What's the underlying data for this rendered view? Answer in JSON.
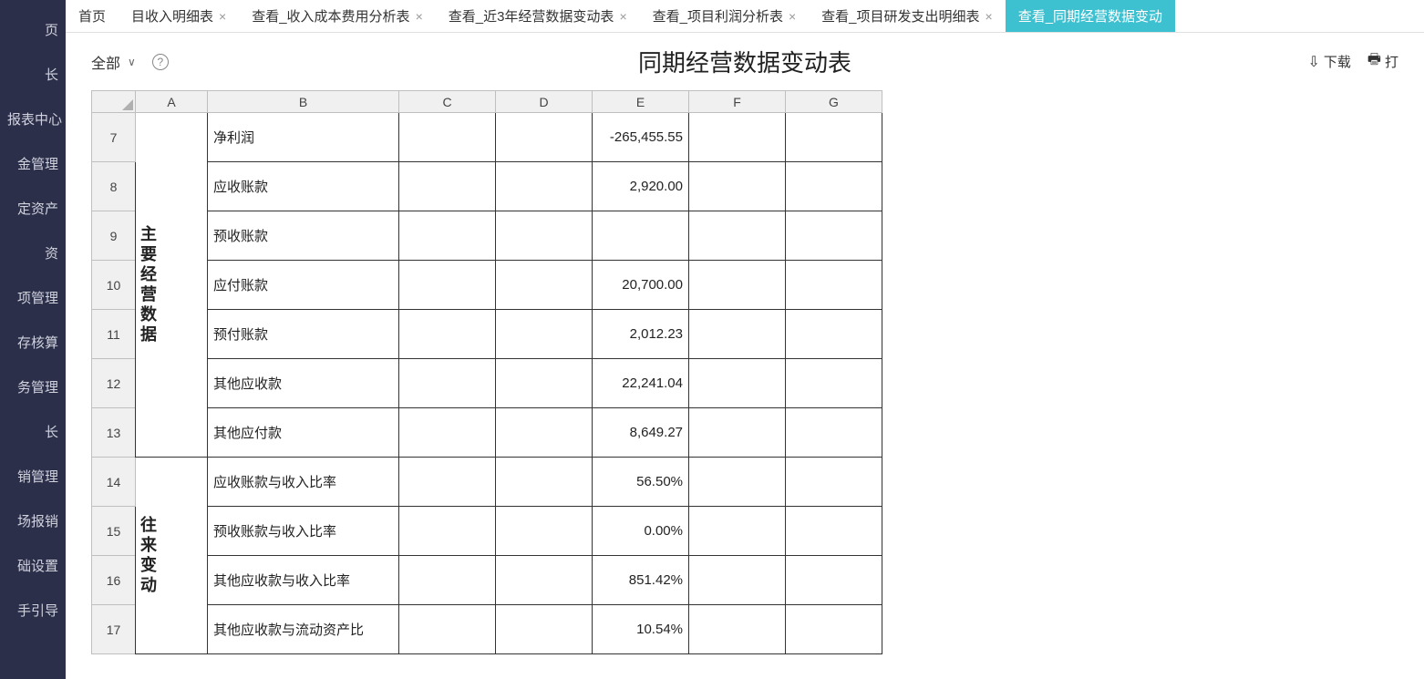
{
  "sidebar": {
    "items": [
      {
        "label": "页"
      },
      {
        "label": "长"
      },
      {
        "label": "报表中心"
      },
      {
        "label": "金管理"
      },
      {
        "label": "定资产"
      },
      {
        "label": "资"
      },
      {
        "label": "项管理"
      },
      {
        "label": "存核算"
      },
      {
        "label": "务管理"
      },
      {
        "label": "长"
      },
      {
        "label": "销管理"
      },
      {
        "label": "场报销"
      },
      {
        "label": "础设置"
      },
      {
        "label": "手引导"
      }
    ]
  },
  "tabs": [
    {
      "label": "首页",
      "closable": false,
      "active": false
    },
    {
      "label": "目收入明细表",
      "closable": true,
      "active": false
    },
    {
      "label": "查看_收入成本费用分析表",
      "closable": true,
      "active": false
    },
    {
      "label": "查看_近3年经营数据变动表",
      "closable": true,
      "active": false
    },
    {
      "label": "查看_项目利润分析表",
      "closable": true,
      "active": false
    },
    {
      "label": "查看_项目研发支出明细表",
      "closable": true,
      "active": false
    },
    {
      "label": "查看_同期经营数据变动",
      "closable": false,
      "active": true
    }
  ],
  "toolbar": {
    "filter_label": "全部",
    "download_label": "下载",
    "print_label": "打"
  },
  "page_title": "同期经营数据变动表",
  "sheet": {
    "columns": [
      "A",
      "B",
      "C",
      "D",
      "E",
      "F",
      "G"
    ],
    "section1_label": "主要经营数据",
    "section2_label": "往来变动",
    "rows": [
      {
        "num": "7",
        "b": "净利润",
        "e": "-265,455.55"
      },
      {
        "num": "8",
        "b": "应收账款",
        "e": "2,920.00"
      },
      {
        "num": "9",
        "b": "预收账款",
        "e": ""
      },
      {
        "num": "10",
        "b": "应付账款",
        "e": "20,700.00"
      },
      {
        "num": "11",
        "b": "预付账款",
        "e": "2,012.23"
      },
      {
        "num": "12",
        "b": "其他应收款",
        "e": "22,241.04"
      },
      {
        "num": "13",
        "b": "其他应付款",
        "e": "8,649.27"
      },
      {
        "num": "14",
        "b": "应收账款与收入比率",
        "e": "56.50%"
      },
      {
        "num": "15",
        "b": "预收账款与收入比率",
        "e": "0.00%"
      },
      {
        "num": "16",
        "b": "其他应收款与收入比率",
        "e": "851.42%"
      },
      {
        "num": "17",
        "b": "其他应收款与流动资产比",
        "e": "10.54%"
      }
    ]
  },
  "colors": {
    "sidebar_bg": "#2b2f4a",
    "sidebar_text": "#d0d2de",
    "active_tab_bg": "#3dc0d0",
    "header_bg": "#f0f0f0",
    "border": "#bfbfbf",
    "thick_border": "#333333"
  }
}
